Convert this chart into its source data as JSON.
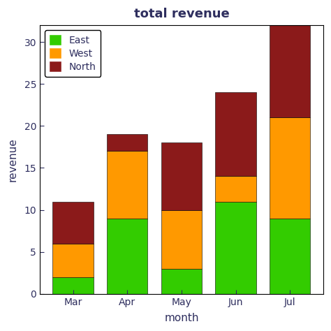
{
  "categories": [
    "Mar",
    "Apr",
    "May",
    "Jun",
    "Jul"
  ],
  "east": [
    2,
    9,
    3,
    11,
    9
  ],
  "west": [
    4,
    8,
    7,
    3,
    12
  ],
  "north": [
    5,
    2,
    8,
    10,
    11
  ],
  "colors": {
    "East": "#33CC00",
    "West": "#FF9900",
    "North": "#8B1A1A"
  },
  "title": "total revenue",
  "xlabel": "month",
  "ylabel": "revenue",
  "ylim": [
    0,
    32
  ],
  "yticks": [
    0,
    5,
    10,
    15,
    20,
    25,
    30
  ],
  "title_fontsize": 13,
  "axis_label_fontsize": 11,
  "tick_fontsize": 10,
  "legend_fontsize": 10,
  "bg_color": "#FFFFFF",
  "bar_width": 0.75,
  "text_color": "#2E2E5E"
}
